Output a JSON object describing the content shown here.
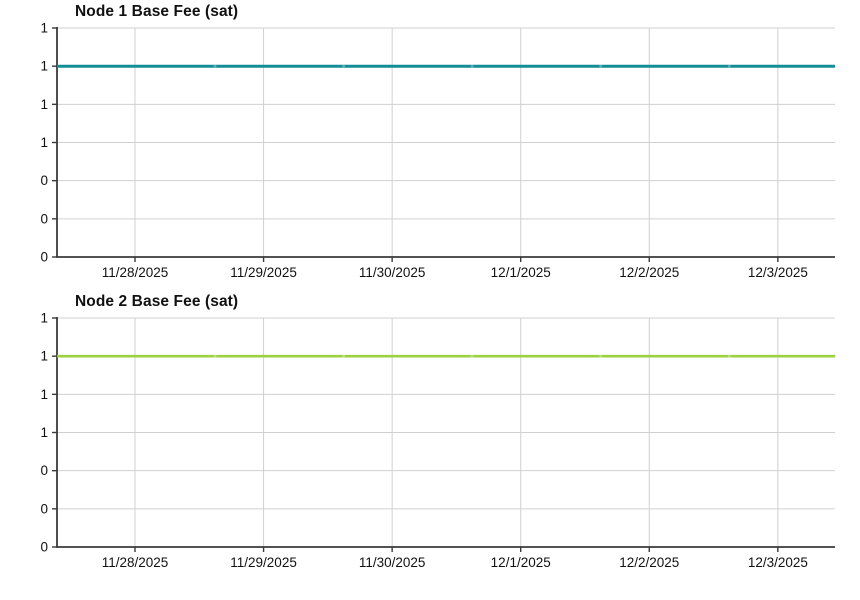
{
  "page": {
    "background": "#ffffff"
  },
  "chart_data": [
    {
      "type": "line",
      "title": "Node 1 Base Fee (sat)",
      "xlabel": "",
      "ylabel": "",
      "x_tick_labels": [
        "11/28/2025",
        "11/29/2025",
        "11/30/2025",
        "12/1/2025",
        "12/2/2025",
        "12/3/2025"
      ],
      "y_tick_labels": [
        "1",
        "1",
        "1",
        "1",
        "0",
        "0",
        "0"
      ],
      "y_tick_values": [
        1.2,
        1.0,
        0.8,
        0.6,
        0.4,
        0.2,
        0.0
      ],
      "ylim": [
        0,
        1.2
      ],
      "grid": true,
      "legend_position": "none",
      "series": [
        {
          "name": "Node 1 Base Fee",
          "values": [
            1,
            1,
            1,
            1,
            1,
            1,
            1
          ],
          "color": "#128e97",
          "stroke_width": 3
        }
      ],
      "axis_color": "#3a3a3a",
      "grid_color": "#d0d0d0",
      "text_color": "#111111"
    },
    {
      "type": "line",
      "title": "Node 2 Base Fee (sat)",
      "xlabel": "",
      "ylabel": "",
      "x_tick_labels": [
        "11/28/2025",
        "11/29/2025",
        "11/30/2025",
        "12/1/2025",
        "12/2/2025",
        "12/3/2025"
      ],
      "y_tick_labels": [
        "1",
        "1",
        "1",
        "1",
        "0",
        "0",
        "0"
      ],
      "y_tick_values": [
        1.2,
        1.0,
        0.8,
        0.6,
        0.4,
        0.2,
        0.0
      ],
      "ylim": [
        0,
        1.2
      ],
      "grid": true,
      "legend_position": "none",
      "series": [
        {
          "name": "Node 2 Base Fee",
          "values": [
            1,
            1,
            1,
            1,
            1,
            1,
            1
          ],
          "color": "#9cd23f",
          "stroke_width": 2.6
        }
      ],
      "axis_color": "#3a3a3a",
      "grid_color": "#d0d0d0",
      "text_color": "#111111"
    }
  ]
}
